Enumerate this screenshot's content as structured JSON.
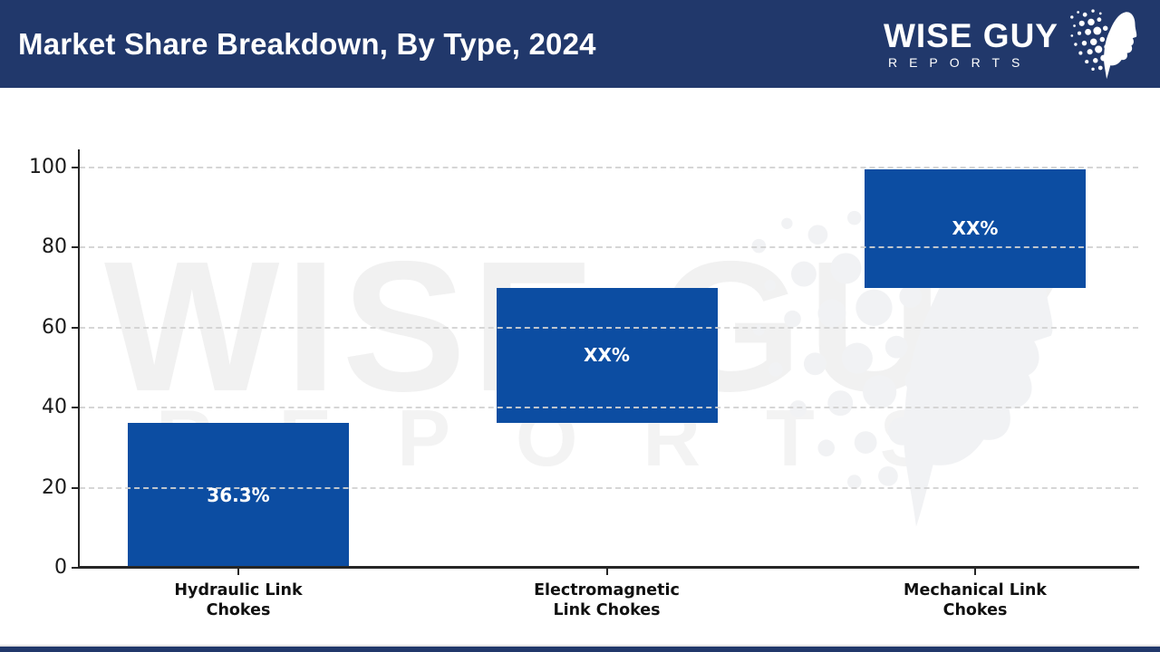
{
  "header": {
    "title": "Market Share Breakdown, By Type, 2024",
    "logo": {
      "brand": "WISE GUY",
      "tagline": "REPORTS"
    }
  },
  "watermark": {
    "brand": "WISE GUY",
    "tagline": "REPORTS"
  },
  "chart_data": {
    "type": "bar",
    "variant": "floating-segment-waterfall",
    "title": "Market Share Breakdown, By Type, 2024",
    "categories": [
      "Hydraulic Link\nChokes",
      "Electromagnetic\nLink Chokes",
      "Mechanical Link\nChokes"
    ],
    "bars": [
      {
        "category": "Hydraulic Link Chokes",
        "start": 0,
        "end": 36.3,
        "label": "36.3%"
      },
      {
        "category": "Electromagnetic Link Chokes",
        "start": 36.3,
        "end": 70,
        "label": "XX%"
      },
      {
        "category": "Mechanical Link Chokes",
        "start": 70,
        "end": 99.5,
        "label": "XX%"
      }
    ],
    "xlabel": "",
    "ylabel": "",
    "yticks": [
      0,
      20,
      40,
      60,
      80,
      100
    ],
    "ylim": [
      0,
      104
    ],
    "grid": {
      "axis": "y",
      "style": "dashed",
      "drawn_over_bars": true
    },
    "legend": null,
    "colors": {
      "bar": "#0c4da2",
      "bar_label": "#ffffff",
      "grid": "#d2d2d2",
      "axis": "#262626",
      "tick_label": "#1a1a1a",
      "header_bg": "#21386b",
      "watermark": "#f1f1f1"
    }
  }
}
